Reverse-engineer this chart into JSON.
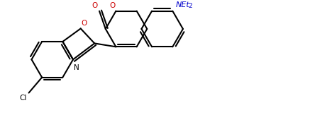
{
  "bg_color": "#ffffff",
  "bond_color": "#000000",
  "O_color": "#cc0000",
  "N_color": "#0000cc",
  "lw": 1.5,
  "figsize": [
    4.37,
    1.63
  ],
  "dpi": 100,
  "xlim": [
    0,
    8.5
  ],
  "ylim": [
    0,
    3.2
  ]
}
